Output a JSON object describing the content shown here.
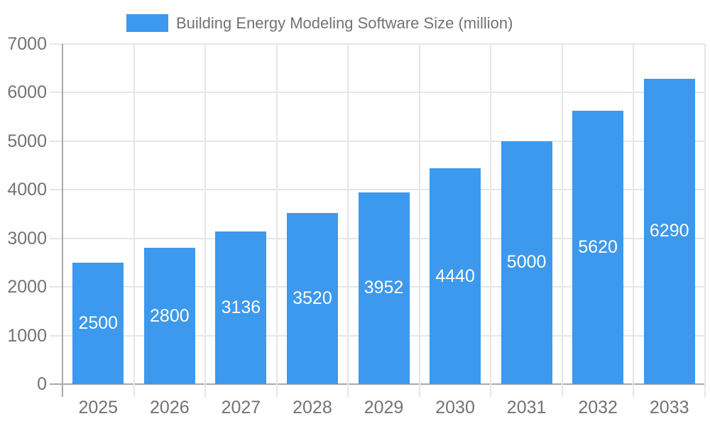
{
  "legend": {
    "label": "Building Energy Modeling Software Size (million)"
  },
  "chart_data": {
    "type": "bar",
    "title": "Building Energy Modeling Software Size (million)",
    "categories": [
      "2025",
      "2026",
      "2027",
      "2028",
      "2029",
      "2030",
      "2031",
      "2032",
      "2033"
    ],
    "values": [
      2500,
      2800,
      3136,
      3520,
      3952,
      4440,
      5000,
      5620,
      6290
    ],
    "series": [
      {
        "name": "Building Energy Modeling Software Size (million)",
        "values": [
          2500,
          2800,
          3136,
          3520,
          3952,
          4440,
          5000,
          5620,
          6290
        ]
      }
    ],
    "xlabel": "",
    "ylabel": "",
    "ylim": [
      0,
      7000
    ],
    "ytick_step": 1000,
    "ytick_labels": [
      "0",
      "1000",
      "2000",
      "3000",
      "4000",
      "5000",
      "6000",
      "7000"
    ],
    "grid": true,
    "legend_position": "top",
    "value_labels_inside_bars": true,
    "colors": {
      "bar": "#3C99ED",
      "value_label": "#ffffff",
      "axis_text": "#737373",
      "gridline": "#e6e6e6",
      "zero_line": "#a9a9a9",
      "background": "#ffffff"
    }
  }
}
